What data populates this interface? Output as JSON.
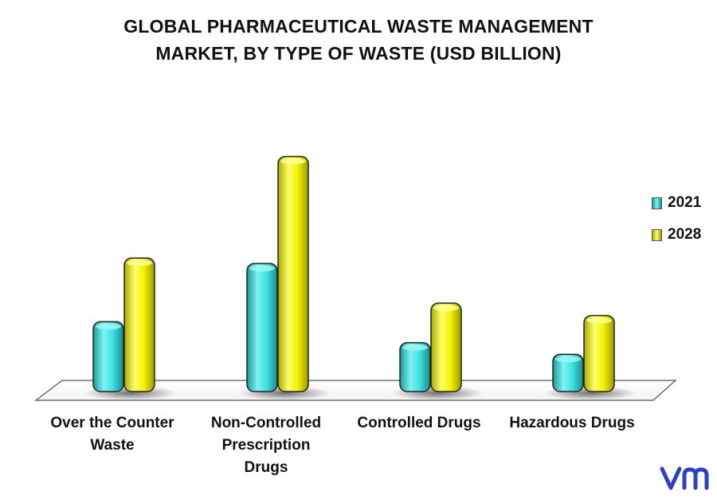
{
  "title": {
    "line1": "GLOBAL PHARMACEUTICAL WASTE MANAGEMENT",
    "line2": "MARKET, BY TYPE OF WASTE (USD BILLION)"
  },
  "chart_data": {
    "type": "bar",
    "title": "GLOBAL PHARMACEUTICAL WASTE MANAGEMENT MARKET, BY TYPE OF WASTE (USD BILLION)",
    "categories": [
      [
        "Over the Counter",
        "Waste"
      ],
      [
        "Non-Controlled",
        "Prescription",
        "Drugs"
      ],
      [
        "Controlled Drugs"
      ],
      [
        "Hazardous Drugs"
      ]
    ],
    "series": [
      {
        "name": "2021",
        "values": [
          0.9,
          1.65,
          0.63,
          0.48
        ],
        "color": "#33d6d6"
      },
      {
        "name": "2028",
        "values": [
          1.72,
          3.03,
          1.14,
          0.98
        ],
        "color": "#f0f000"
      }
    ],
    "ylim": [
      0,
      3.2
    ],
    "grid": false,
    "legend": "right",
    "three_d": true
  },
  "legend": {
    "items": [
      "2021",
      "2028"
    ]
  },
  "logo": {
    "icon": "vmr-logo-icon",
    "color": "#2f3fc8"
  }
}
